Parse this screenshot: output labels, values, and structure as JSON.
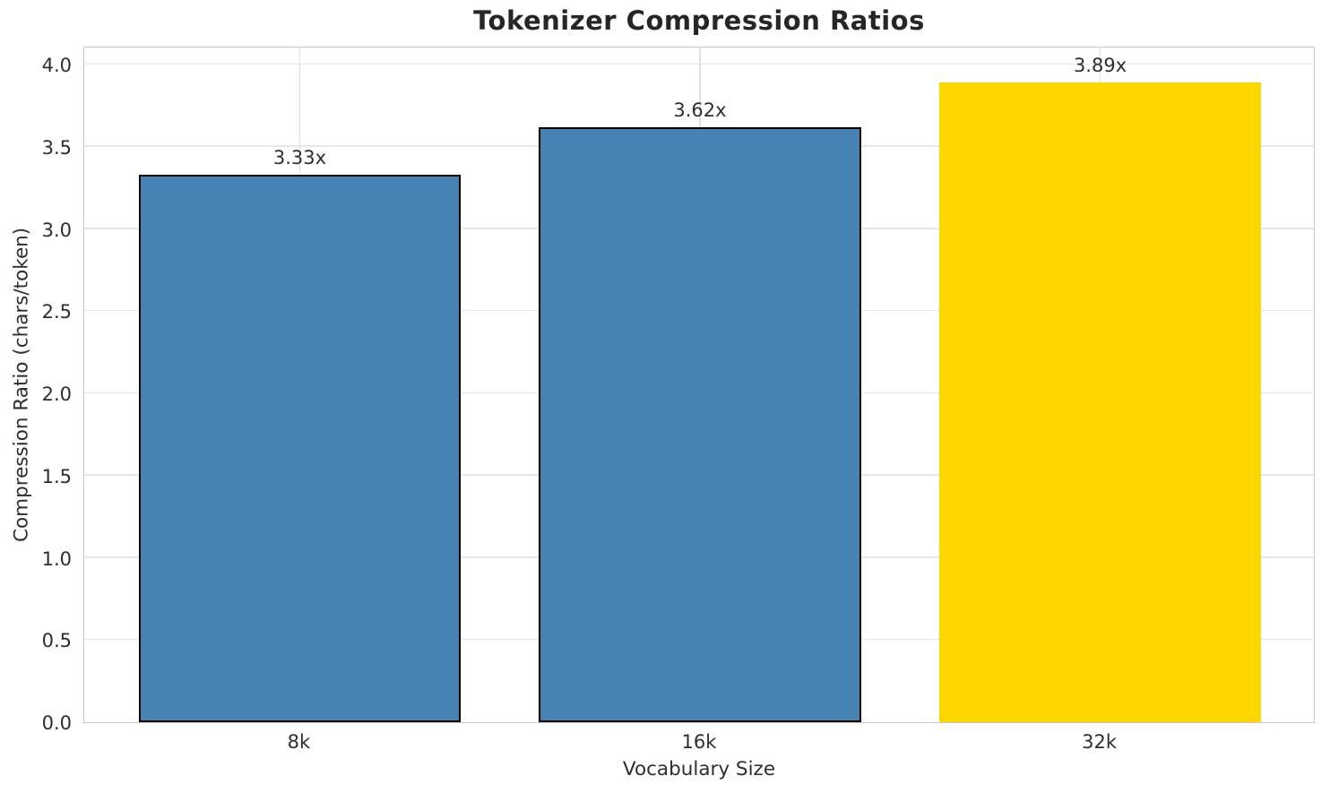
{
  "chart_data": {
    "type": "bar",
    "title": "Tokenizer Compression Ratios",
    "xlabel": "Vocabulary Size",
    "ylabel": "Compression Ratio (chars/token)",
    "categories": [
      "8k",
      "16k",
      "32k"
    ],
    "values": [
      3.33,
      3.62,
      3.89
    ],
    "bar_labels": [
      "3.33x",
      "3.62x",
      "3.89x"
    ],
    "bar_colors": [
      "#4682B4",
      "#4682B4",
      "#FFD700"
    ],
    "bar_edge_colors": [
      "#000000",
      "#000000",
      "#FFD700"
    ],
    "highlight_color": "#FFD700",
    "series_color": "#4682B4",
    "ylim": [
      0,
      4.115
    ],
    "yticks": [
      0.0,
      0.5,
      1.0,
      1.5,
      2.0,
      2.5,
      3.0,
      3.5,
      4.0
    ],
    "ytick_labels": [
      "0.0",
      "0.5",
      "1.0",
      "1.5",
      "2.0",
      "2.5",
      "3.0",
      "3.5",
      "4.0"
    ],
    "grid": true,
    "grid_color": "#e7e7e7",
    "spine_color": "#c9c9c9",
    "legend_position": "none"
  }
}
